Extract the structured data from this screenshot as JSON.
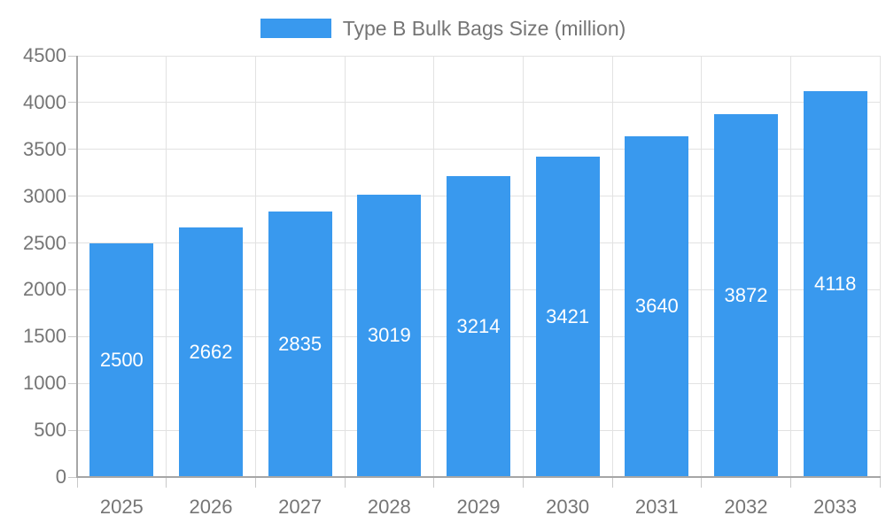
{
  "legend": {
    "label": "Type B Bulk Bags Size (million)"
  },
  "colors": {
    "bar": "#3999EE",
    "grid": "#E2E2E2",
    "axis": "#A6A6A6",
    "tick": "#C9C9C9",
    "text": "#757575",
    "value_label": "#FFFFFF",
    "background": "#FFFFFF"
  },
  "chart_data": {
    "type": "bar",
    "title": "Type B Bulk Bags Size (million)",
    "series_name": "Type B Bulk Bags Size (million)",
    "categories": [
      "2025",
      "2026",
      "2027",
      "2028",
      "2029",
      "2030",
      "2031",
      "2032",
      "2033"
    ],
    "values": [
      2500,
      2662,
      2835,
      3019,
      3214,
      3421,
      3640,
      3872,
      4118
    ],
    "xlabel": "",
    "ylabel": "",
    "ylim": [
      0,
      4500
    ],
    "ytick_interval": 500,
    "yticks": [
      0,
      500,
      1000,
      1500,
      2000,
      2500,
      3000,
      3500,
      4000,
      4500
    ],
    "grid": true,
    "legend_position": "top",
    "value_label_position": "inside-center"
  }
}
